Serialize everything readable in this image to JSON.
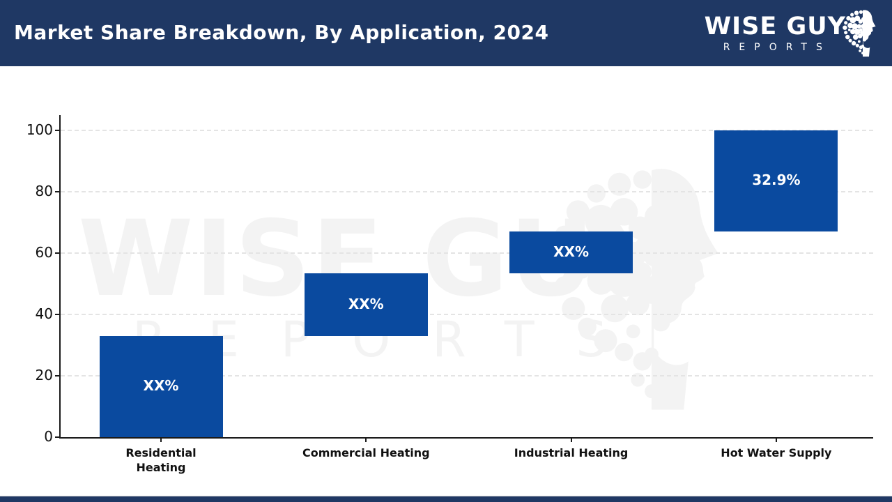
{
  "header": {
    "title": "Market Share Breakdown, By Application, 2024",
    "logo": {
      "wordmark": "WISE GUY",
      "subtitle": "REPORTS"
    }
  },
  "watermark": {
    "wordmark": "WISE GUY",
    "subtitle": "REPORTS"
  },
  "colors": {
    "header_bg": "#1f3864",
    "bar": "#0a4a9f",
    "axis": "#1a1a1a",
    "gridline": "#e4e4e4",
    "watermark": "#f3f3f3",
    "bar_label_text": "#ffffff"
  },
  "chart_data": {
    "type": "bar",
    "variant": "waterfall",
    "title": "Market Share Breakdown, By Application, 2024",
    "xlabel": "",
    "ylabel": "",
    "ylim": [
      0,
      105
    ],
    "yticks": [
      0,
      20,
      40,
      60,
      80,
      100
    ],
    "grid": "horizontal-dashed",
    "legend": "none",
    "categories": [
      "Residential Heating",
      "Commercial Heating",
      "Industrial Heating",
      "Hot Water Supply"
    ],
    "category_display": [
      "Residential\nHeating",
      "Commercial Heating",
      "Industrial Heating",
      "Hot Water Supply"
    ],
    "segments": [
      {
        "category": "Residential Heating",
        "start": 0,
        "end": 33.0,
        "value": 33.0,
        "label": "XX%"
      },
      {
        "category": "Commercial Heating",
        "start": 33.0,
        "end": 53.4,
        "value": 20.4,
        "label": "XX%"
      },
      {
        "category": "Industrial Heating",
        "start": 53.4,
        "end": 67.1,
        "value": 13.7,
        "label": "XX%"
      },
      {
        "category": "Hot Water Supply",
        "start": 67.1,
        "end": 100.0,
        "value": 32.9,
        "label": "32.9%"
      }
    ]
  }
}
